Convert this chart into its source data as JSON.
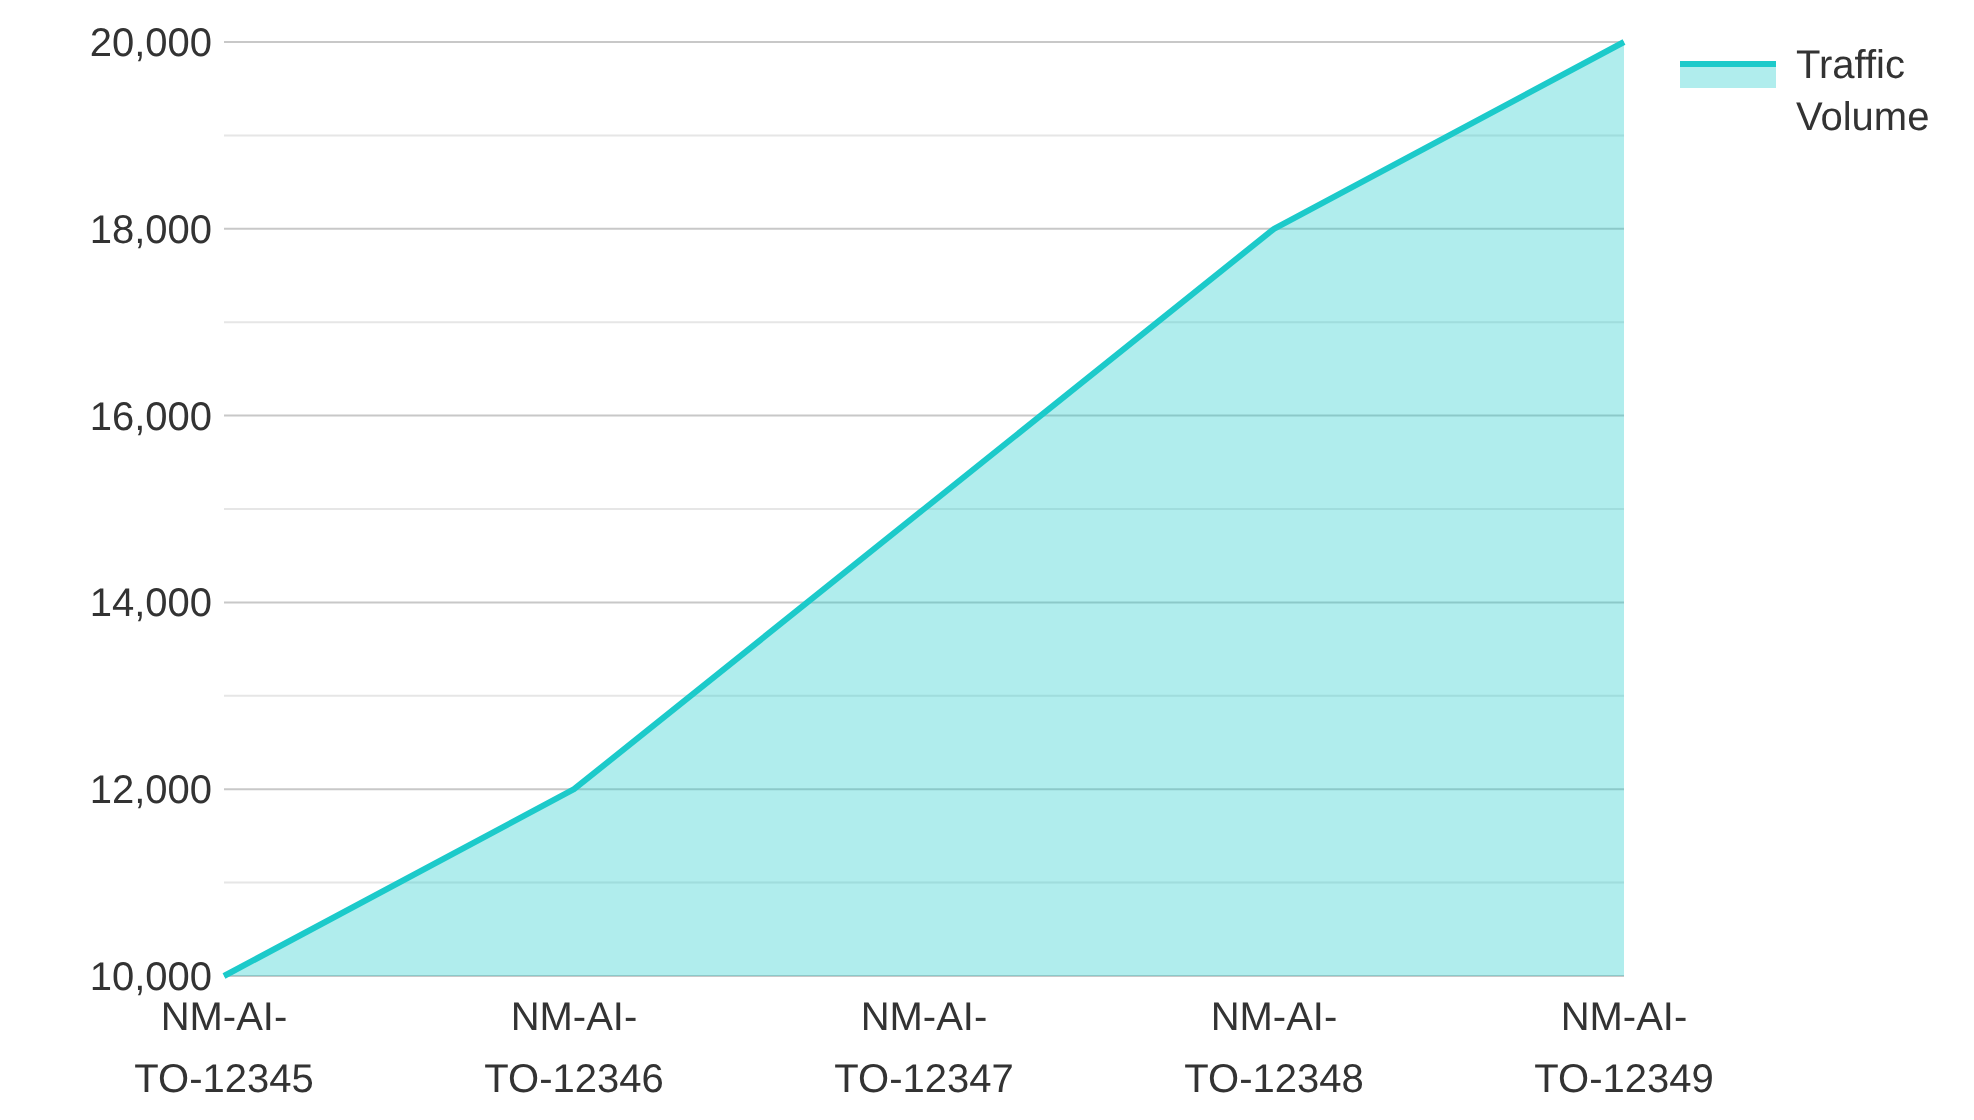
{
  "chart_data": {
    "type": "area",
    "categories": [
      "NM-AI-TO-12345",
      "NM-AI-TO-12346",
      "NM-AI-TO-12347",
      "NM-AI-TO-12348",
      "NM-AI-TO-12349"
    ],
    "series": [
      {
        "name": "Traffic Volume",
        "color": "#1ccaca",
        "values": [
          10000,
          12000,
          15000,
          18000,
          20000
        ]
      }
    ],
    "ylim": [
      10000,
      20000
    ],
    "yticks": [
      {
        "value": 10000,
        "label": "10,000"
      },
      {
        "value": 11000,
        "label": null
      },
      {
        "value": 12000,
        "label": "12,000"
      },
      {
        "value": 13000,
        "label": null
      },
      {
        "value": 14000,
        "label": "14,000"
      },
      {
        "value": 15000,
        "label": null
      },
      {
        "value": 16000,
        "label": "16,000"
      },
      {
        "value": 17000,
        "label": null
      },
      {
        "value": 18000,
        "label": "18,000"
      },
      {
        "value": 19000,
        "label": null
      },
      {
        "value": 20000,
        "label": "20,000"
      }
    ],
    "grid": "y",
    "legend": "top right"
  }
}
